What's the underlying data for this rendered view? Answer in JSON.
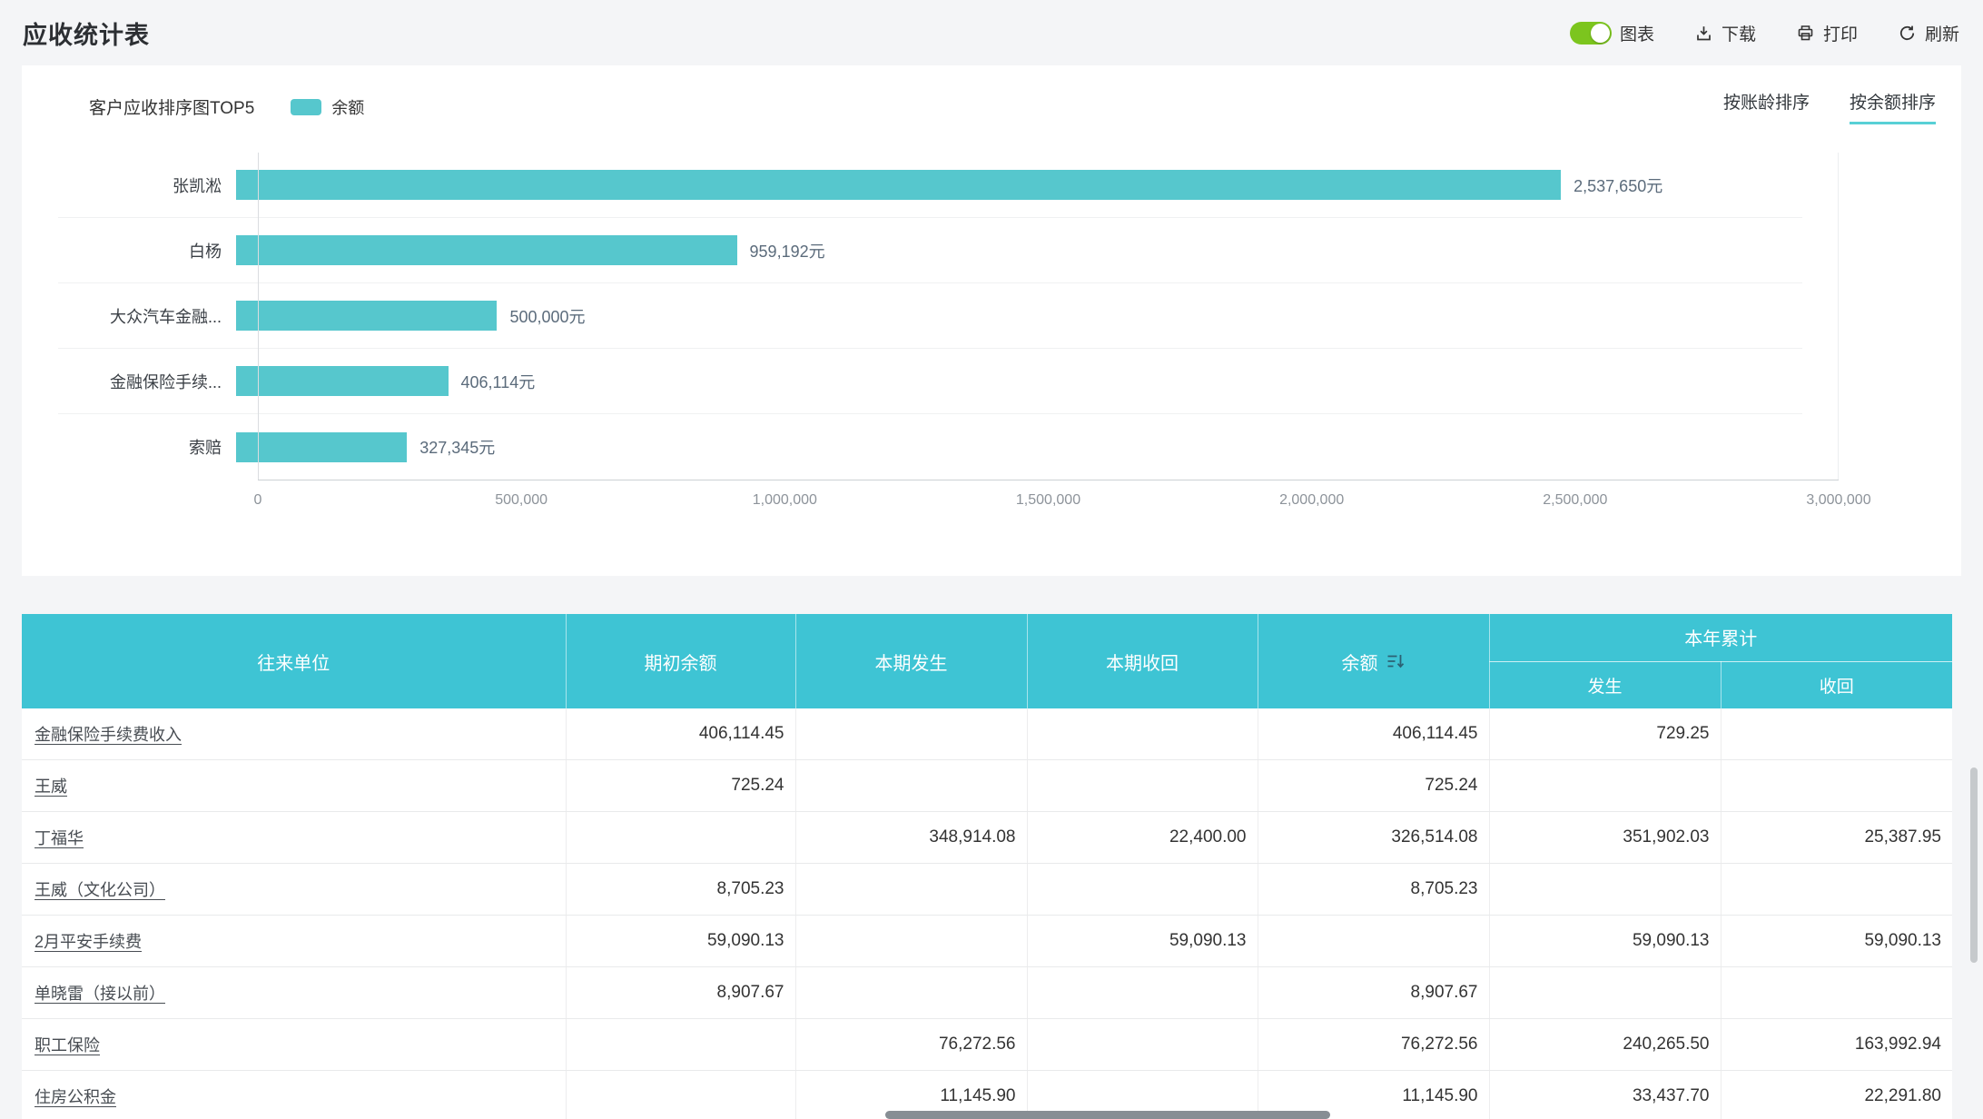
{
  "page": {
    "title": "应收统计表"
  },
  "toolbar": {
    "chart_toggle": {
      "label": "图表",
      "state": "on",
      "color": "#7cc51e"
    },
    "download": "下载",
    "print": "打印",
    "refresh": "刷新"
  },
  "chart_card": {
    "title": "客户应收排序图TOP5",
    "legend_label": "余额",
    "accent": "#58d0d6",
    "sort_tabs": [
      {
        "label": "按账龄排序",
        "active": false
      },
      {
        "label": "按余额排序",
        "active": true
      }
    ]
  },
  "chart_data": {
    "type": "bar",
    "orientation": "horizontal",
    "title": "客户应收排序图TOP5",
    "legend": [
      "余额"
    ],
    "legend_position": "top",
    "categories": [
      "张凯淞",
      "白杨",
      "大众汽车金融...",
      "金融保险手续...",
      "索赔"
    ],
    "values": [
      2537650,
      959192,
      500000,
      406114,
      327345
    ],
    "value_labels": [
      "2,537,650元",
      "959,192元",
      "500,000元",
      "406,114元",
      "327,345元"
    ],
    "xlim": [
      0,
      3000000
    ],
    "x_ticks": [
      0,
      500000,
      1000000,
      1500000,
      2000000,
      2500000,
      3000000
    ],
    "x_tick_labels": [
      "0",
      "500,000",
      "1,000,000",
      "1,500,000",
      "2,000,000",
      "2,500,000",
      "3,000,000"
    ],
    "bar_color": "#56c7cd",
    "grid": true
  },
  "table": {
    "header_bg": "#3ec4d4",
    "header": {
      "company": "往来单位",
      "opening_balance": "期初余额",
      "current_incurred": "本期发生",
      "current_received": "本期收回",
      "balance": "余额",
      "ytd_group": "本年累计",
      "ytd_incurred": "发生",
      "ytd_received": "收回"
    },
    "rows": [
      {
        "company": "金融保险手续费收入",
        "cells": [
          "406,114.45",
          "",
          "",
          "406,114.45",
          "729.25",
          ""
        ]
      },
      {
        "company": "王威",
        "cells": [
          "725.24",
          "",
          "",
          "725.24",
          "",
          ""
        ]
      },
      {
        "company": "丁福华",
        "cells": [
          "",
          "348,914.08",
          "22,400.00",
          "326,514.08",
          "351,902.03",
          "25,387.95"
        ]
      },
      {
        "company": "王威（文化公司）",
        "cells": [
          "8,705.23",
          "",
          "",
          "8,705.23",
          "",
          ""
        ]
      },
      {
        "company": "2月平安手续费",
        "cells": [
          "59,090.13",
          "",
          "59,090.13",
          "",
          "59,090.13",
          "59,090.13"
        ]
      },
      {
        "company": "单晓雷（接以前）",
        "cells": [
          "8,907.67",
          "",
          "",
          "8,907.67",
          "",
          ""
        ]
      },
      {
        "company": "职工保险",
        "cells": [
          "",
          "76,272.56",
          "",
          "76,272.56",
          "240,265.50",
          "163,992.94"
        ]
      },
      {
        "company": "住房公积金",
        "cells": [
          "",
          "11,145.90",
          "",
          "11,145.90",
          "33,437.70",
          "22,291.80"
        ]
      }
    ]
  }
}
